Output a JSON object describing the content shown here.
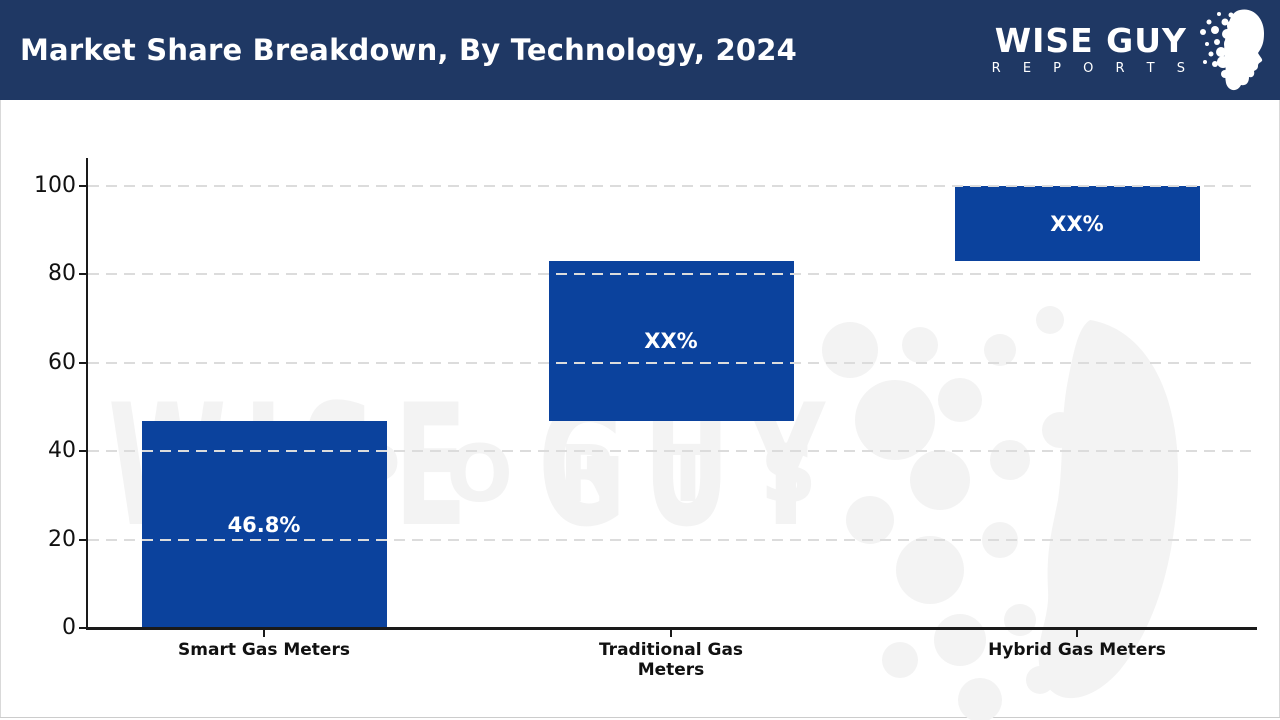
{
  "header": {
    "title": "Market Share Breakdown, By Technology, 2024",
    "logo": {
      "line1": "WISE GUY",
      "line2": "R E P O R T S"
    }
  },
  "watermark": {
    "line1": "WISE GUY",
    "line2": "REPORTS"
  },
  "chart_data": {
    "type": "bar",
    "subtype": "waterfall-floating-segments",
    "title": "Market Share Breakdown, By Technology, 2024",
    "categories": [
      "Smart Gas Meters",
      "Traditional Gas\nMeters",
      "Hybrid Gas Meters"
    ],
    "segments": [
      {
        "category": "Smart Gas Meters",
        "start": 0,
        "end": 46.8,
        "label": "46.8%"
      },
      {
        "category": "Traditional Gas Meters",
        "start": 46.8,
        "end": 83,
        "label": "XX%"
      },
      {
        "category": "Hybrid Gas Meters",
        "start": 83,
        "end": 100,
        "label": "XX%"
      }
    ],
    "yticks": [
      0,
      20,
      40,
      60,
      80,
      100
    ],
    "ylim": [
      0,
      106
    ],
    "xlabel": "",
    "ylabel": "",
    "grid": "horizontal-dashed-over-bars",
    "legend": "none",
    "bar_color": "#0b429d",
    "bar_label_color": "#ffffff",
    "axis_color": "#1a1a1a",
    "gridline_color": "#dcdcdc",
    "header_color": "#1f3864"
  }
}
